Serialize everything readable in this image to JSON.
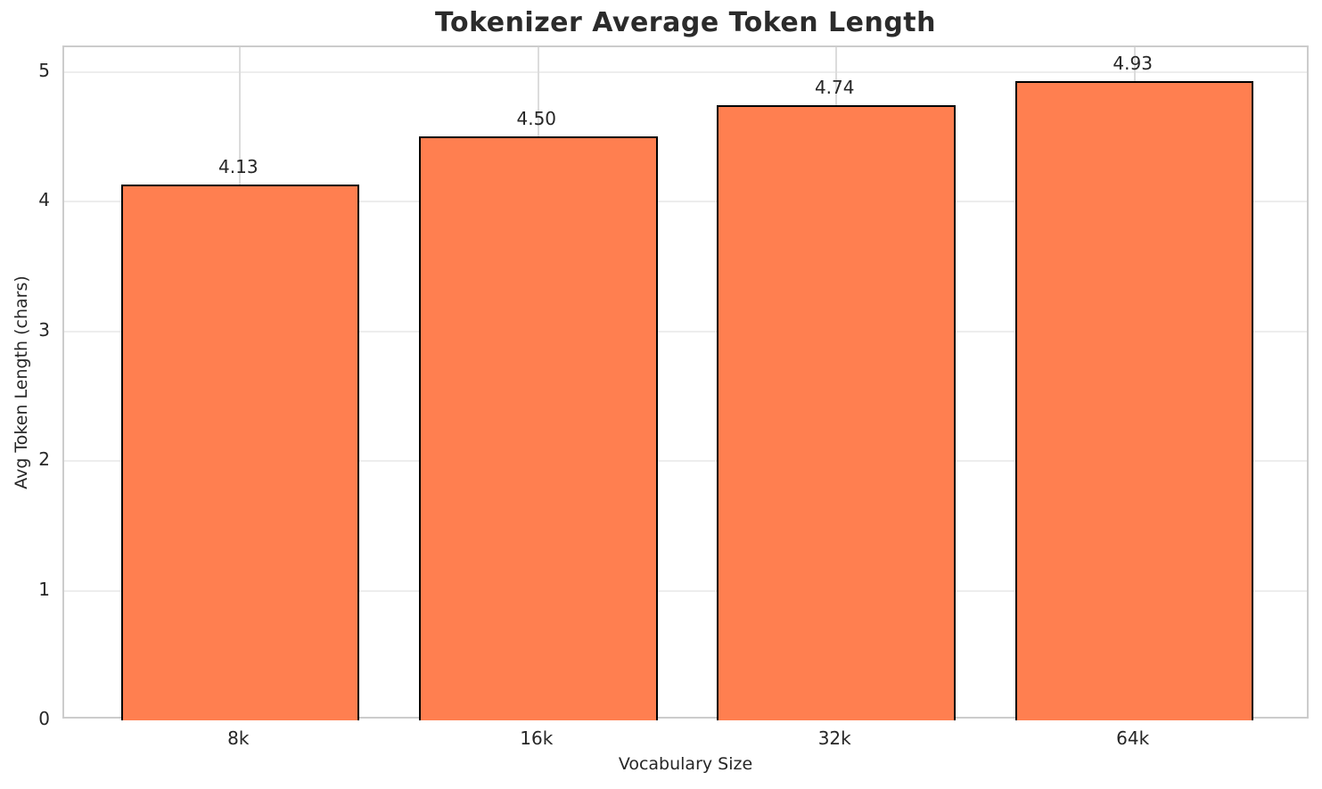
{
  "chart_data": {
    "type": "bar",
    "title": "Tokenizer Average Token Length",
    "xlabel": "Vocabulary Size",
    "ylabel": "Avg Token Length (chars)",
    "categories": [
      "8k",
      "16k",
      "32k",
      "64k"
    ],
    "values": [
      4.13,
      4.5,
      4.74,
      4.93
    ],
    "value_labels": [
      "4.13",
      "4.50",
      "4.74",
      "4.93"
    ],
    "ylim": [
      0,
      5.19
    ],
    "yticks": [
      0,
      1,
      2,
      3,
      4,
      5
    ],
    "ytick_labels": [
      "0",
      "1",
      "2",
      "3",
      "4",
      "5"
    ],
    "grid": true,
    "legend_position": "none",
    "colors": {
      "bar_fill": "#FF7F50",
      "bar_edge": "#000000",
      "grid_horizontal": "#ededed",
      "grid_vertical": "#dcdcdc",
      "spine": "#cccccc",
      "title_text": "#2b2b2b",
      "tick_text": "#262626"
    }
  }
}
